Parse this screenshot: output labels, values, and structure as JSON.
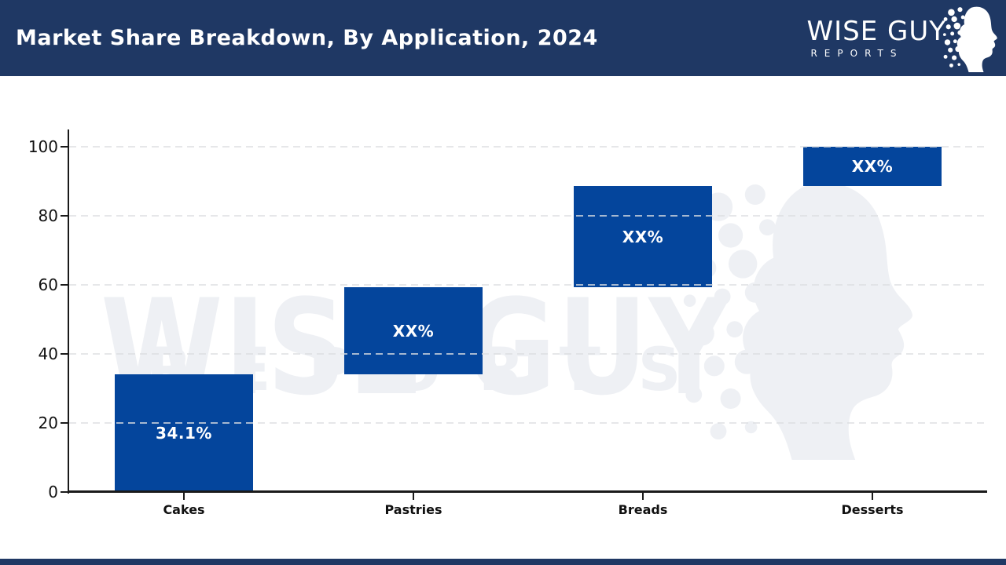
{
  "header": {
    "title": "Market Share Breakdown, By Application, 2024",
    "brand": {
      "name": "WISE GUY",
      "sub": "REPORTS"
    }
  },
  "watermark": {
    "line1": "WISE GUY",
    "line2": "REPORTS"
  },
  "colors": {
    "header_bg": "#1f3864",
    "footer_bg": "#1f3864",
    "bar": "#04459c",
    "bar_label": "#ffffff",
    "grid": "#dddfe2",
    "axis": "#1a1a1a",
    "watermark": "#eef0f4",
    "title_text": "#ffffff"
  },
  "chart_data": {
    "type": "bar",
    "subtype": "waterfall",
    "title": "Market Share Breakdown, By Application, 2024",
    "categories": [
      "Cakes",
      "Pastries",
      "Breads",
      "Desserts"
    ],
    "segments": [
      {
        "category": "Cakes",
        "start": 0,
        "end": 34.1,
        "label": "34.1%"
      },
      {
        "category": "Pastries",
        "start": 34.1,
        "end": 59.3,
        "label": "XX%"
      },
      {
        "category": "Breads",
        "start": 59.3,
        "end": 88.6,
        "label": "XX%"
      },
      {
        "category": "Desserts",
        "start": 88.6,
        "end": 100,
        "label": "XX%"
      }
    ],
    "xlabel": "",
    "ylabel": "",
    "yticks": [
      0,
      20,
      40,
      60,
      80,
      100
    ],
    "ylim": [
      0,
      105
    ],
    "grid": "horizontal-dashed",
    "legend": "none",
    "bar_color": "#04459c"
  }
}
